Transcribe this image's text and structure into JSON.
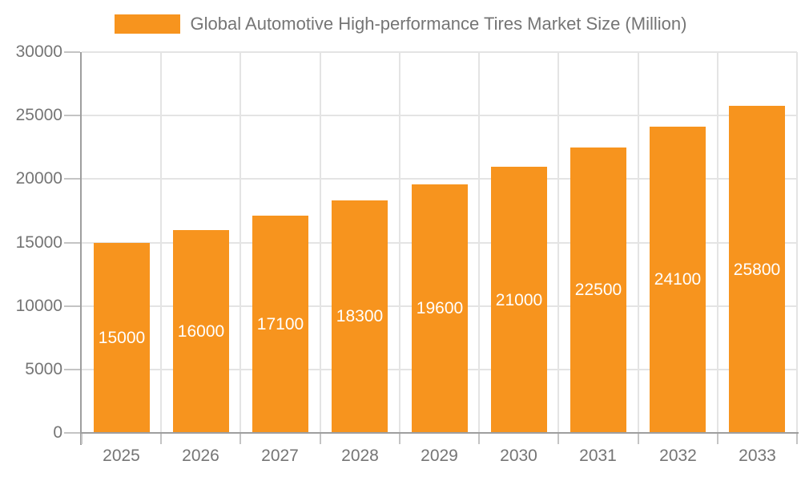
{
  "legend": {
    "position": "top",
    "items": [
      {
        "label": "Global Automotive High-performance Tires Market Size (Million)",
        "swatch_color": "#F7941E"
      }
    ]
  },
  "chart_data": {
    "type": "bar",
    "title": "Global Automotive High-performance Tires Market Size (Million)",
    "categories": [
      "2025",
      "2026",
      "2027",
      "2028",
      "2029",
      "2030",
      "2031",
      "2032",
      "2033"
    ],
    "values": [
      15000,
      16000,
      17100,
      18300,
      19600,
      21000,
      22500,
      24100,
      25800
    ],
    "xlabel": "",
    "ylabel": "",
    "ylim": [
      0,
      30000
    ],
    "yticks": [
      0,
      5000,
      10000,
      15000,
      20000,
      25000,
      30000
    ],
    "grid": true,
    "legend_position": "top",
    "bar_value_labels": "inside-center",
    "colors": {
      "bar": "#F7941E",
      "bar_label": "#FFFFFF",
      "axis_text": "#757575",
      "grid_line": "#E4E4E4",
      "axis_line": "#9E9E9E",
      "tick_line": "#C4C4C4",
      "background": "#FFFFFF"
    }
  }
}
